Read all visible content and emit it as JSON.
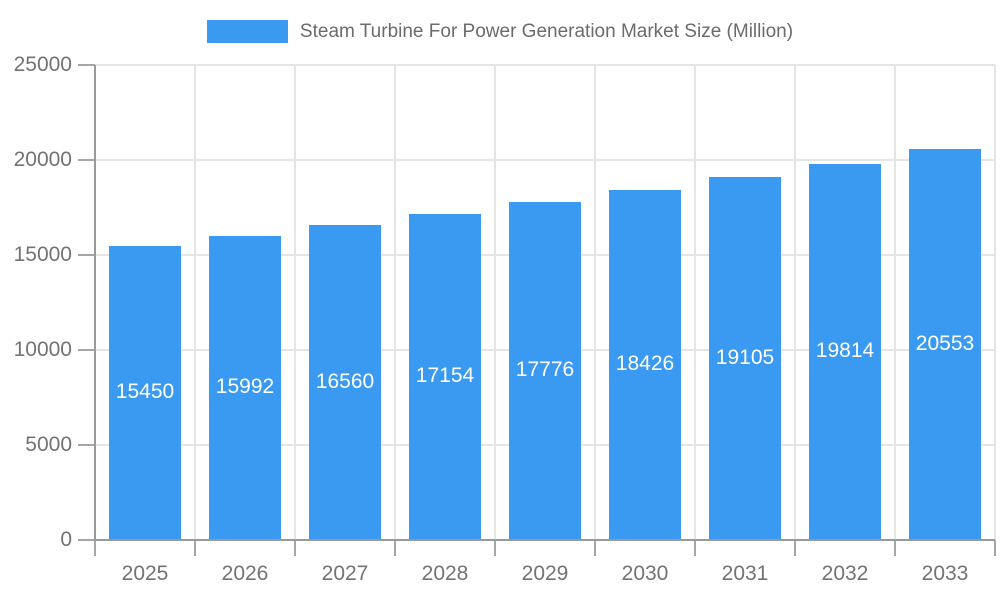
{
  "chart_data": {
    "type": "bar",
    "title": "Steam Turbine For Power Generation Market Size (Million)",
    "categories": [
      "2025",
      "2026",
      "2027",
      "2028",
      "2029",
      "2030",
      "2031",
      "2032",
      "2033"
    ],
    "values": [
      15450,
      15992,
      16560,
      17154,
      17776,
      18426,
      19105,
      19814,
      20553
    ],
    "ylim": [
      0,
      25000
    ],
    "yticks": [
      0,
      5000,
      10000,
      15000,
      20000,
      25000
    ],
    "legend_position": "top",
    "grid": true,
    "value_labels": "inside-center",
    "colors": {
      "bar": "#3A99F1",
      "value_label": "#ffffff",
      "grid_line": "#e5e5e5",
      "axis_line": "#9a9a9a",
      "tick_mark": "#a6a6a6",
      "tick_label": "#737373",
      "title": "#6b6b6b"
    }
  }
}
